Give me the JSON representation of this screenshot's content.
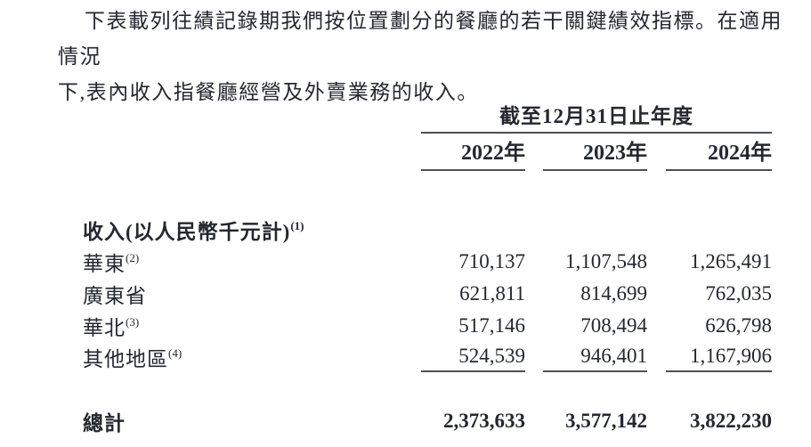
{
  "intro": {
    "line1": "下表載列往績記錄期我們按位置劃分的餐廳的若干關鍵績效指標。在適用情況",
    "line2": "下,表內收入指餐廳經營及外賣業務的收入。"
  },
  "table": {
    "period_header": "截至12月31日止年度",
    "years": [
      "2022年",
      "2023年",
      "2024年"
    ],
    "section": {
      "label": "收入(以人民幣千元計)",
      "footnote": "(1)"
    },
    "rows": [
      {
        "label": "華東",
        "footnote": "(2)",
        "values": [
          "710,137",
          "1,107,548",
          "1,265,491"
        ]
      },
      {
        "label": "廣東省",
        "footnote": "",
        "values": [
          "621,811",
          "814,699",
          "762,035"
        ]
      },
      {
        "label": "華北",
        "footnote": "(3)",
        "values": [
          "517,146",
          "708,494",
          "626,798"
        ]
      },
      {
        "label": "其他地區",
        "footnote": "(4)",
        "values": [
          "524,539",
          "946,401",
          "1,167,906"
        ]
      }
    ],
    "total": {
      "label": "總計",
      "values": [
        "2,373,633",
        "3,577,142",
        "3,822,230"
      ]
    }
  },
  "colors": {
    "text": "#25272e",
    "rule": "#4e5056",
    "background": "#ffffff"
  }
}
